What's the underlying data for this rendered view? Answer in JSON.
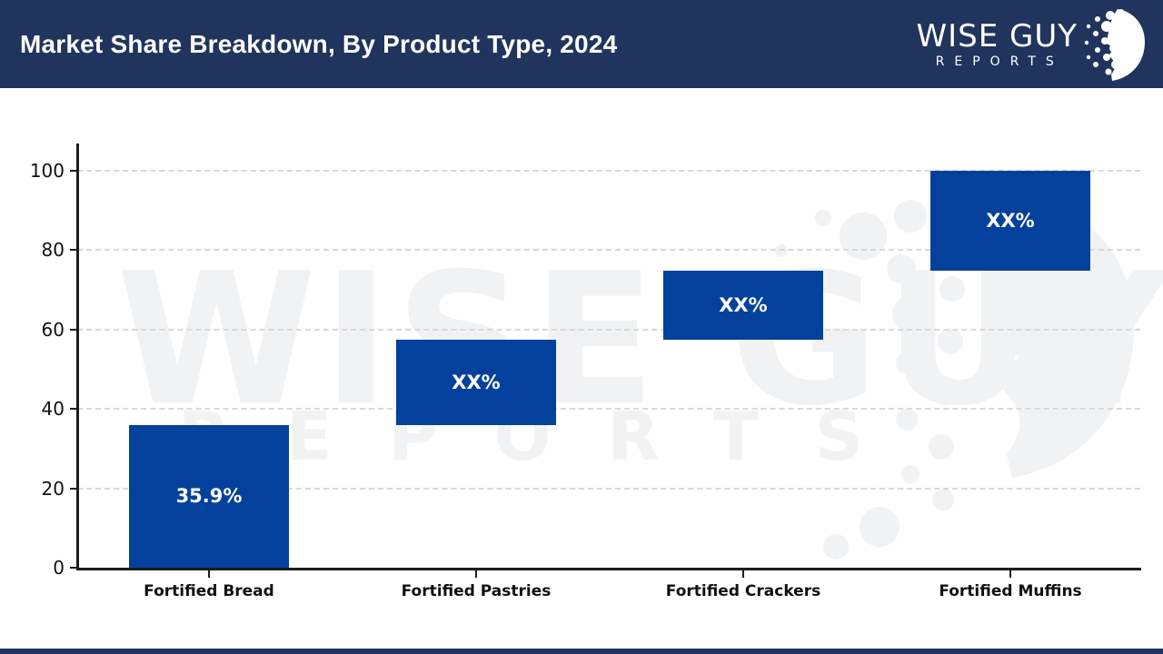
{
  "header": {
    "title": "Market Share Breakdown, By Product Type, 2024",
    "logo": {
      "line1": "WISE GUY",
      "line2": "REPORTS"
    }
  },
  "watermark": {
    "line1": "WISE GUY",
    "line2": "REPORTS"
  },
  "chart_data": {
    "type": "bar",
    "subtype": "waterfall",
    "title": "Market Share Breakdown, By Product Type, 2024",
    "categories": [
      "Fortified Bread",
      "Fortified Pastries",
      "Fortified Crackers",
      "Fortified Muffins"
    ],
    "segments": [
      {
        "category": "Fortified Bread",
        "start": 0,
        "end": 35.9,
        "label": "35.9%"
      },
      {
        "category": "Fortified Pastries",
        "start": 35.9,
        "end": 57.4,
        "label": "XX%"
      },
      {
        "category": "Fortified Crackers",
        "start": 57.4,
        "end": 74.7,
        "label": "XX%"
      },
      {
        "category": "Fortified Muffins",
        "start": 74.7,
        "end": 100,
        "label": "XX%"
      }
    ],
    "values": [
      35.9,
      21.5,
      17.3,
      25.3
    ],
    "xlabel": "",
    "ylabel": "",
    "ylim": [
      0,
      105
    ],
    "yticks": [
      0,
      20,
      40,
      60,
      80,
      100
    ],
    "grid": "horizontal-dashed",
    "legend": "none",
    "colors": {
      "bar": "#04419c",
      "bar_label": "#ffffff",
      "header_bg": "#20345e",
      "axis": "#1c1c1c",
      "gridline": "#d9d9d9",
      "watermark": "#f1f2f4",
      "tick_text": "#111111"
    }
  }
}
